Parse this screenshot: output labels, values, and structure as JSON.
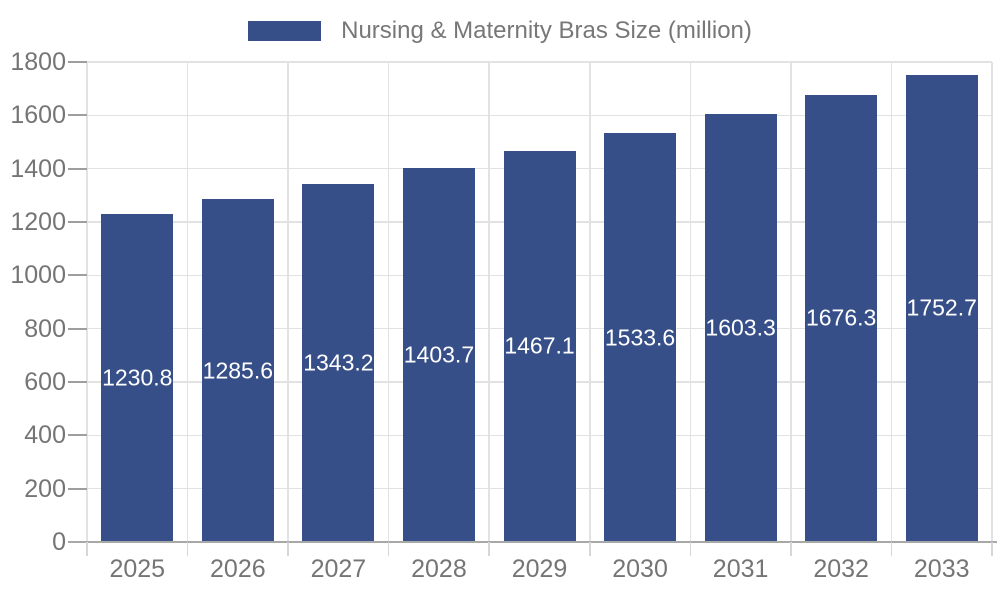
{
  "colors": {
    "background": "#ffffff",
    "bar": "#374F88",
    "value_label": "#ffffff",
    "axis_text": "#757575",
    "legend_text": "#777777",
    "axis_line": "#a8a8a8",
    "grid_line": "#e2e2e2",
    "tick_mark_y": "#9e9e9e",
    "tick_mark_x": "#d6d6d6"
  },
  "chart_data": {
    "type": "bar",
    "title": "",
    "xlabel": "",
    "ylabel": "",
    "categories": [
      "2025",
      "2026",
      "2027",
      "2028",
      "2029",
      "2030",
      "2031",
      "2032",
      "2033"
    ],
    "series": [
      {
        "name": "Nursing & Maternity Bras Size (million)",
        "color": "#374F88",
        "values": [
          1230.8,
          1285.6,
          1343.2,
          1403.7,
          1467.1,
          1533.6,
          1603.3,
          1676.3,
          1752.7
        ]
      }
    ],
    "value_labels": [
      "1230.8",
      "1285.6",
      "1343.2",
      "1403.7",
      "1467.1",
      "1533.6",
      "1603.3",
      "1676.3",
      "1752.7"
    ],
    "ylim": [
      0,
      1800
    ],
    "yticks": [
      0,
      200,
      400,
      600,
      800,
      1000,
      1200,
      1400,
      1600,
      1800
    ],
    "grid": true,
    "legend_position": "top-center",
    "value_label_position": "inside-center"
  }
}
